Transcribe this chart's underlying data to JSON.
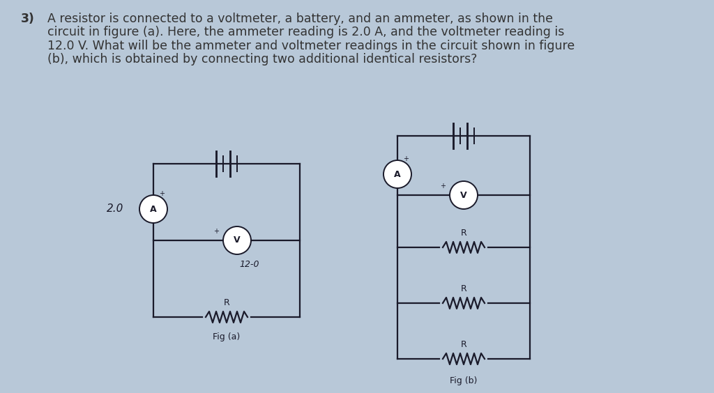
{
  "bg_color": "#b8c8d8",
  "text_color": "#2a2a2a",
  "line_color": "#1a1a2a",
  "title_number": "3)",
  "title_text_line1": "A resistor is connected to a voltmeter, a battery, and an ammeter, as shown in the",
  "title_text_line2": "circuit in figure (a). Here, the ammeter reading is 2.0 A, and the voltmeter reading is",
  "title_text_line3": "12.0 V. What will be the ammeter and voltmeter readings in the circuit shown in figure",
  "title_text_line4": "(b), which is obtained by connecting two additional identical resistors?",
  "label_2o": "2.0",
  "fig_a_label": "Fig (a)",
  "fig_b_label": "Fig (b)",
  "battery_label_a": "12-0",
  "resistor_label_a": "R",
  "resistor_label_b1": "R",
  "resistor_label_b2": "R",
  "resistor_label_b3": "R",
  "font_size_title": 12.5,
  "font_size_small": 9,
  "font_size_fig": 9,
  "font_size_label": 10
}
